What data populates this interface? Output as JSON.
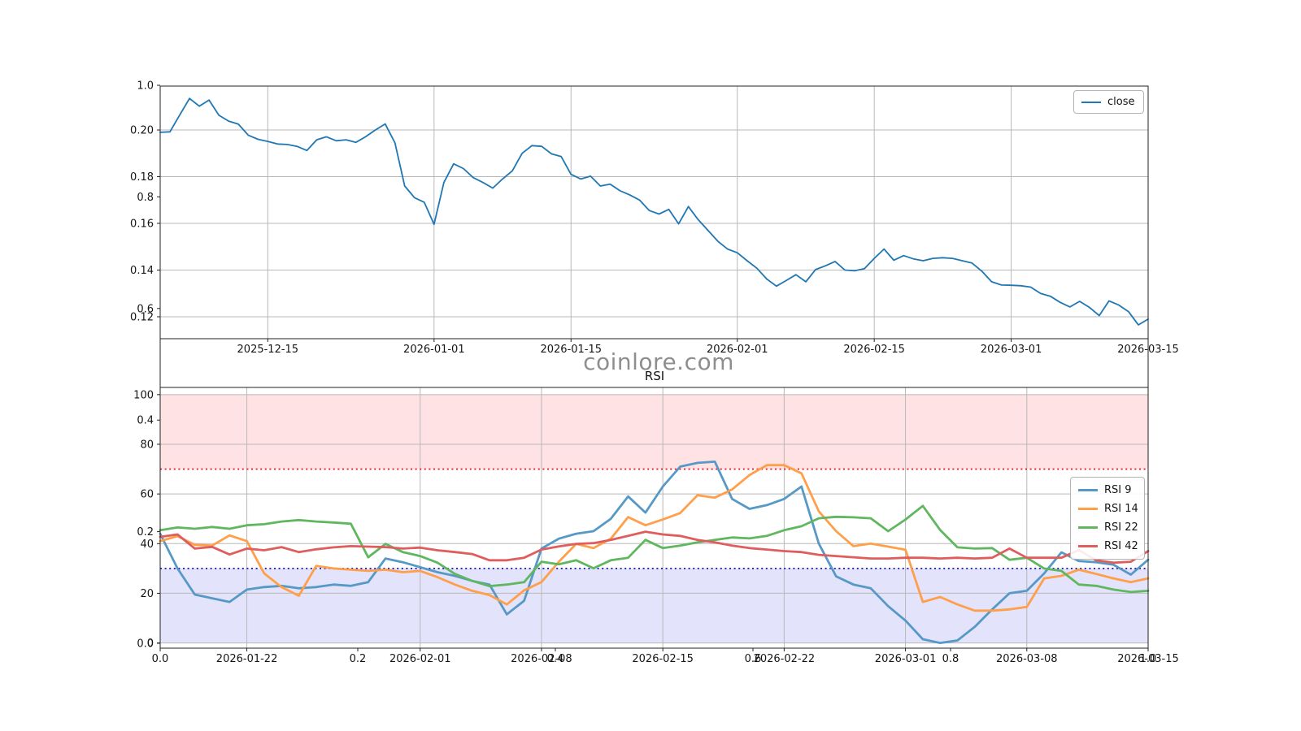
{
  "watermark": "coinlore.com",
  "colors": {
    "grid": "#b8b8b8",
    "spine": "#222222",
    "tick_text": "#151515",
    "overbought_band": "rgba(255,60,70,0.15)",
    "oversold_band": "rgba(55,55,230,0.14)",
    "overbought_line": "#e60015",
    "oversold_line": "#1212d0",
    "watermark_color": "#8e8e8e"
  },
  "overlay_axis": {
    "x_ticks": [
      "0.0",
      "0.2",
      "0.4",
      "0.6",
      "0.8",
      "1.0"
    ],
    "y_ticks": [
      "0.0",
      "0.2",
      "0.4",
      "0.6",
      "0.8",
      "1.0"
    ]
  },
  "chart_data": [
    {
      "type": "line",
      "name": "price",
      "title": "",
      "grid": true,
      "legend_position": "upper right",
      "x_start_date": "2025-12-04",
      "x_end_date": "2026-03-15",
      "interval_days": 1,
      "x_ticks": [
        "2025-12-15",
        "2026-01-01",
        "2026-01-15",
        "2026-02-01",
        "2026-02-15",
        "2026-03-01",
        "2026-03-15"
      ],
      "y_ticks": [
        "0.12",
        "0.14",
        "0.16",
        "0.18",
        "0.20"
      ],
      "ylim": [
        0.1106,
        0.2188
      ],
      "series": [
        {
          "name": "close",
          "color": "#1f77b4",
          "values": [
            0.199,
            0.1992,
            0.2065,
            0.2135,
            0.2102,
            0.2128,
            0.2063,
            0.2038,
            0.2025,
            0.1978,
            0.196,
            0.1951,
            0.194,
            0.1938,
            0.193,
            0.1912,
            0.1958,
            0.1971,
            0.1954,
            0.1958,
            0.1947,
            0.1971,
            0.2,
            0.2026,
            0.1945,
            0.176,
            0.171,
            0.169,
            0.1596,
            0.1775,
            0.1855,
            0.1835,
            0.1796,
            0.1775,
            0.1751,
            0.179,
            0.1825,
            0.19,
            0.1933,
            0.193,
            0.1898,
            0.1886,
            0.181,
            0.179,
            0.1802,
            0.176,
            0.1768,
            0.174,
            0.1722,
            0.17,
            0.1655,
            0.164,
            0.166,
            0.1598,
            0.1672,
            0.1616,
            0.157,
            0.1524,
            0.149,
            0.1474,
            0.144,
            0.1408,
            0.1362,
            0.1331,
            0.1355,
            0.138,
            0.135,
            0.1402,
            0.1418,
            0.1437,
            0.14,
            0.1397,
            0.1406,
            0.145,
            0.149,
            0.1442,
            0.1462,
            0.1448,
            0.144,
            0.145,
            0.1453,
            0.145,
            0.144,
            0.143,
            0.1395,
            0.135,
            0.1336,
            0.1335,
            0.1333,
            0.1327,
            0.13,
            0.1288,
            0.1262,
            0.1242,
            0.1266,
            0.124,
            0.1205,
            0.1268,
            0.125,
            0.1222,
            0.1165,
            0.119
          ]
        }
      ]
    },
    {
      "type": "line",
      "name": "rsi",
      "title": "RSI",
      "grid": true,
      "legend_position": "right",
      "x_start_date": "2026-01-17",
      "x_end_date": "2026-03-15",
      "interval_days": 1,
      "x_ticks": [
        "2026-01-22",
        "2026-02-01",
        "2026-02-08",
        "2026-02-15",
        "2026-02-22",
        "2026-03-01",
        "2026-03-08",
        "2026-03-15"
      ],
      "y_ticks": [
        "0",
        "20",
        "40",
        "60",
        "80",
        "100"
      ],
      "ylim": [
        -2.1,
        102.9
      ],
      "overbought_level": 70,
      "oversold_level": 30,
      "series": [
        {
          "name": "RSI 9",
          "color": "#5799c6",
          "values": [
            44,
            30,
            19.5,
            18,
            16.5,
            21.5,
            22.5,
            23,
            22,
            22.5,
            23.5,
            23,
            24.5,
            34,
            32.5,
            30.5,
            28.5,
            27,
            25,
            23.5,
            11.5,
            17,
            38,
            42,
            44,
            45,
            50,
            59,
            52.5,
            63,
            71,
            72.5,
            73,
            58,
            54,
            55.5,
            58,
            63,
            40,
            26.8,
            23.5,
            22,
            14.8,
            9,
            1.5,
            0,
            1,
            6.5,
            13.5,
            20,
            21,
            28,
            36.5,
            33,
            32.5,
            31.5,
            27.5,
            33.5
          ]
        },
        {
          "name": "RSI 14",
          "color": "#ff9f4a",
          "values": [
            41,
            43,
            39.5,
            39.2,
            43.3,
            41,
            28,
            22.5,
            19,
            31,
            30,
            29.5,
            29,
            29.5,
            28.5,
            29,
            26.5,
            23.5,
            21,
            19.3,
            15.5,
            21.2,
            24.5,
            32.7,
            39.9,
            38.2,
            42,
            50.7,
            47.4,
            49.7,
            52.3,
            59.5,
            58.5,
            61.8,
            67.6,
            71.6,
            71.6,
            68.3,
            53,
            45,
            39,
            40,
            38.8,
            37.5,
            16.5,
            18.5,
            15.5,
            13,
            13,
            13.5,
            14.5,
            26,
            27,
            29.5,
            27.8,
            26,
            24.5,
            26
          ]
        },
        {
          "name": "RSI 22",
          "color": "#60b760",
          "values": [
            45.4,
            46.5,
            46,
            46.7,
            46,
            47.4,
            47.8,
            48.9,
            49.5,
            48.9,
            48.5,
            48,
            34.5,
            39.9,
            36.6,
            35,
            32.3,
            27.8,
            25,
            22.9,
            23.5,
            24.5,
            32.7,
            31.7,
            33.3,
            30.1,
            33.3,
            34.3,
            41.5,
            38.2,
            39.2,
            40.5,
            41.5,
            42.5,
            42.1,
            43.1,
            45.4,
            47,
            50.2,
            50.8,
            50.6,
            50.2,
            45,
            49.7,
            55.2,
            45.5,
            38.5,
            38,
            38.2,
            33.5,
            34.3,
            30,
            29,
            23.5,
            23,
            21.5,
            20.5,
            21
          ]
        },
        {
          "name": "RSI 42",
          "color": "#e05d5d",
          "values": [
            42.7,
            43.7,
            38,
            38.7,
            35.6,
            38,
            37.3,
            38.6,
            36.6,
            37.7,
            38.5,
            39,
            38.8,
            38.6,
            38,
            38.4,
            37.3,
            36.6,
            35.8,
            33.3,
            33.3,
            34.3,
            37.6,
            38.9,
            39.9,
            40.2,
            41.5,
            43.1,
            44.8,
            43.7,
            43.1,
            41.5,
            40.5,
            39.2,
            38.2,
            37.6,
            37,
            36.6,
            35.5,
            35,
            34.5,
            34,
            34,
            34.3,
            34.3,
            34,
            34.3,
            34,
            34.3,
            38,
            34.3,
            34.3,
            34.3,
            37.4,
            33.3,
            32.3,
            32.7,
            37
          ]
        }
      ]
    }
  ]
}
